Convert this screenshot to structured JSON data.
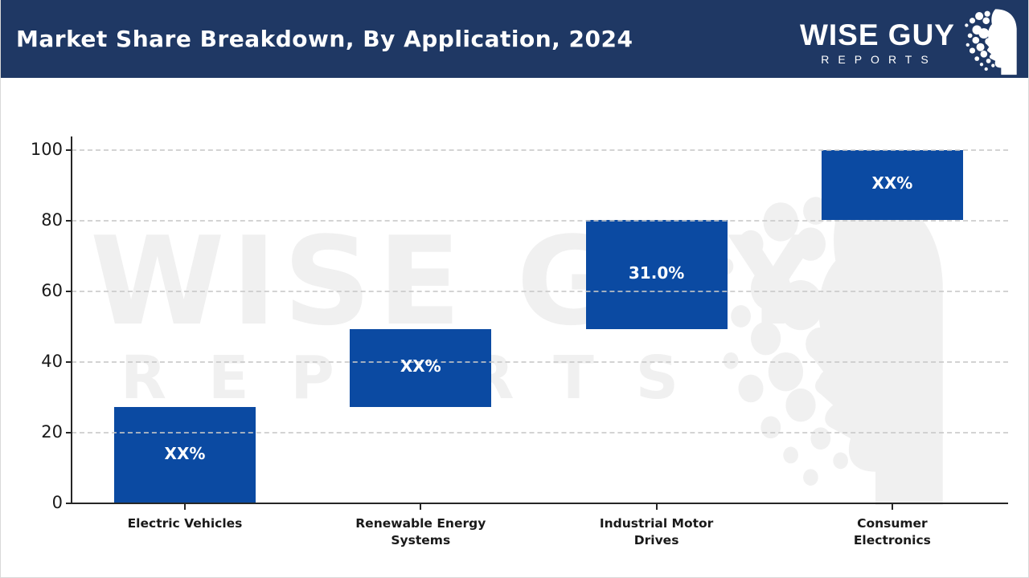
{
  "colors": {
    "header_bg": "#1f3864",
    "bar": "#0b4aa2",
    "bar_label": "#ffffff",
    "axis": "#262626",
    "grid": "#d9d9d9",
    "watermark": "#f0f0f0",
    "tick_text": "#1a1a1a"
  },
  "header": {
    "title": "Market Share Breakdown, By Application, 2024",
    "logo_line1": "WISE GUY",
    "logo_line2": "REPORTS"
  },
  "watermark": {
    "line1": "WISE GUY",
    "line2": "REPORTS"
  },
  "chart_data": {
    "type": "bar",
    "variant": "waterfall",
    "title": "Market Share Breakdown, By Application, 2024",
    "categories": [
      [
        "Electric Vehicles"
      ],
      [
        "Renewable Energy",
        "Systems"
      ],
      [
        "Industrial Motor",
        "Drives"
      ],
      [
        "Consumer",
        "Electronics"
      ]
    ],
    "segments": [
      {
        "category": "Electric Vehicles",
        "start": 0,
        "end": 27.3,
        "value": 27.3,
        "label": "XX%"
      },
      {
        "category": "Renewable Energy Systems",
        "start": 27.3,
        "end": 49.3,
        "value": 22.0,
        "label": "XX%"
      },
      {
        "category": "Industrial Motor Drives",
        "start": 49.3,
        "end": 80.3,
        "value": 31.0,
        "label": "31.0%"
      },
      {
        "category": "Consumer Electronics",
        "start": 80.3,
        "end": 100,
        "value": 19.7,
        "label": "XX%"
      }
    ],
    "ylim": [
      0,
      100
    ],
    "yticks": [
      0,
      20,
      40,
      60,
      80,
      100
    ],
    "grid": "horizontal-dashed",
    "legend": "none"
  }
}
